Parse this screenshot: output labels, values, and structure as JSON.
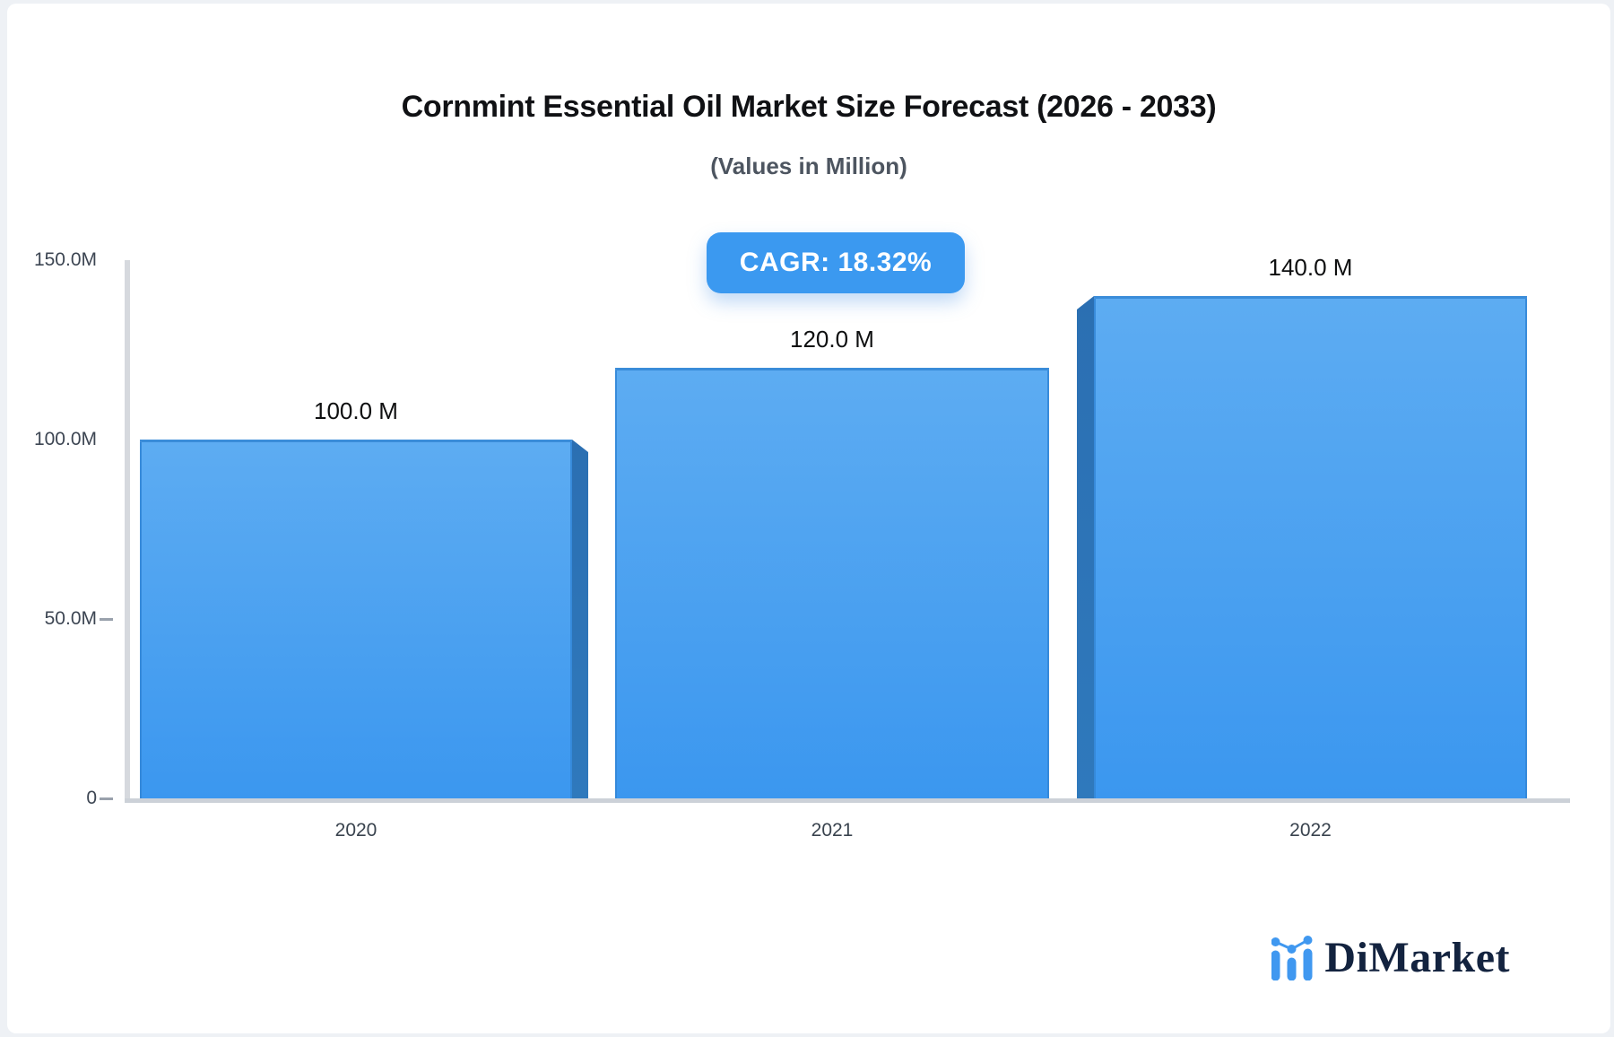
{
  "page": {
    "background": "#eef1f5",
    "card_background": "#ffffff"
  },
  "header": {
    "title": "Cornmint Essential Oil Market Size Forecast (2026 - 2033)",
    "subtitle": "(Values in Million)"
  },
  "cagr_badge": {
    "label": "CAGR: 18.32%",
    "background": "#3b99f0",
    "text_color": "#ffffff"
  },
  "chart_data": {
    "type": "bar",
    "title": "Cornmint Essential Oil Market Size Forecast (2026 - 2033)",
    "subtitle": "(Values in Million)",
    "unit": "Million",
    "categories": [
      "2020",
      "2021",
      "2022"
    ],
    "values": [
      100,
      120,
      140
    ],
    "value_labels": [
      "100.0 M",
      "120.0 M",
      "140.0 M"
    ],
    "ylim": [
      0,
      150
    ],
    "y_tick_values": [
      150,
      100,
      50,
      0
    ],
    "y_tick_labels": [
      "150.0M",
      "100.0M",
      "50.0M",
      "0"
    ],
    "y_tick_dash": [
      false,
      false,
      true,
      true
    ],
    "grid": false,
    "legend": false,
    "bar_color_top": "#5dacf2",
    "bar_color_bottom": "#3b97ef",
    "bar_side_color": "#2d73b6",
    "bar_3d_sides": [
      "right",
      "none",
      "left"
    ]
  },
  "footer": {
    "brand": "DiMarket",
    "logo_icon": "bar-chart-logo-icon",
    "brand_color": "#13233f",
    "icon_color": "#4098f0"
  }
}
